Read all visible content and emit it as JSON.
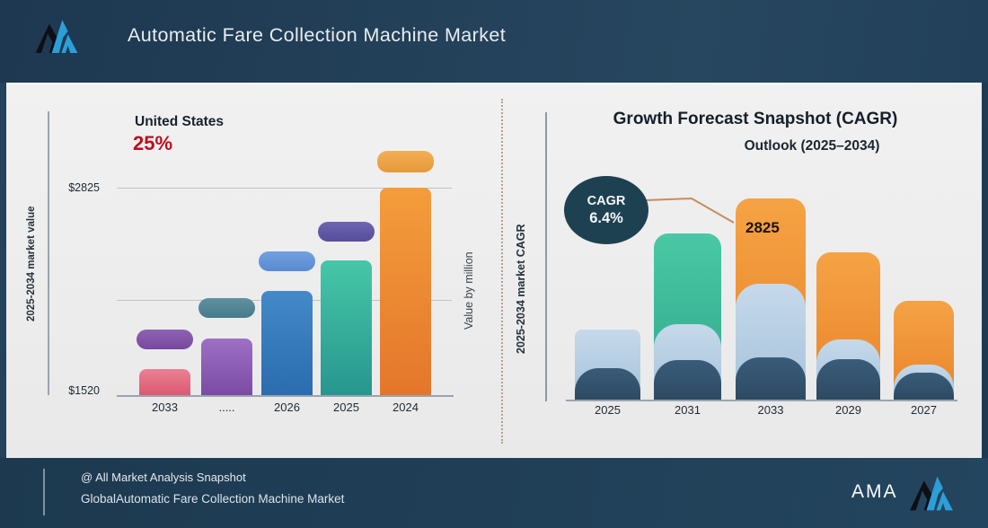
{
  "header": {
    "title": "Automatic Fare Collection Machine Market",
    "logo": "ama-logo"
  },
  "panel": {
    "left_chart": {
      "region_title": "United States",
      "highlight_value": "25%",
      "y_axis_label": "2025-2034 market value",
      "ytick_top": "$2825",
      "ytick_bottom": "$1520",
      "categories": [
        "2033",
        ".....",
        "2026",
        "2025",
        "2024"
      ]
    },
    "center_labels": {
      "value_axis": "Value by million",
      "cagr_axis": "2025-2034 market CAGR"
    },
    "right_chart": {
      "title": "Growth Forecast Snapshot (CAGR)",
      "subtitle": "Outlook (2025–2034)",
      "cagr_badge": {
        "label": "CAGR",
        "value": "6.4%"
      },
      "data_label": "2825",
      "categories": [
        "2025",
        "2031",
        "2033",
        "2029",
        "2027"
      ]
    }
  },
  "footer": {
    "credit": "@ All Market Analysis Snapshot",
    "subtitle": "GlobalAutomatic Fare Collection Machine Market",
    "brand_text": "AMA"
  },
  "colors": {
    "background_navy": "#22415a",
    "panel_bg": "#ededee",
    "accent_red": "#bb0f1c",
    "text_dark": "#1c2733",
    "text_light": "#e9edf0",
    "axis_gray": "#9aa4ad",
    "gridline_gray": "#bfc3c7",
    "divider_tan": "#b2a193",
    "connector_tan": "#c68d5e",
    "circle_navy": "#1e4152",
    "bar_pink": "#e1697f",
    "bar_purple": "#8a5bb4",
    "bar_blue": "#3380c0",
    "bar_teal": "#35b89b",
    "bar_orange": "#ee8a2f",
    "cap_purple": "#7e4da8",
    "cap_slate": "#4b8292",
    "cap_lightblue": "#5f93dd",
    "cap_indigo": "#5b51a5",
    "cap_lightorange": "#f4a33e",
    "seg_navy": "#31506b",
    "seg_lightblue": "#b7cfe4",
    "seg_green": "#3dbd98",
    "seg_orange": "#f29232",
    "logo_black": "#0d0f14",
    "logo_blue": "#2b9fd8"
  },
  "chart_data": [
    {
      "id": "us-market-value",
      "type": "bar",
      "title": "United States",
      "annotation": "25%",
      "ylabel": "2025-2034 market value",
      "yticks": [
        "$1520",
        "$2825"
      ],
      "ylim": [
        1520,
        3100
      ],
      "gridlines": [
        2825
      ],
      "categories": [
        "2033",
        ".....",
        "2026",
        "2025",
        "2024"
      ],
      "values": [
        1685,
        1875,
        2175,
        2365,
        2825
      ],
      "floating_caps": [
        [
          1810,
          1930
        ],
        [
          2005,
          2130
        ],
        [
          2300,
          2425
        ],
        [
          2485,
          2610
        ],
        [
          2920,
          3055
        ]
      ],
      "bar_colors": [
        "pink",
        "purple",
        "blue",
        "teal",
        "orange"
      ],
      "cap_colors": [
        "cappurple",
        "capslate",
        "caplightblue",
        "capindigo",
        "caplightorange"
      ]
    },
    {
      "id": "growth-forecast",
      "type": "stacked-bar",
      "title": "Growth Forecast Snapshot (CAGR)",
      "subtitle": "Outlook (2025–2034)",
      "cagr": "6.4%",
      "categories": [
        "2025",
        "2031",
        "2033",
        "2029",
        "2027"
      ],
      "series": [
        {
          "name": "base",
          "color": "navy",
          "values": [
            440,
            555,
            590,
            565,
            380
          ]
        },
        {
          "name": "mid",
          "color": "lightblue",
          "values": [
            540,
            505,
            1035,
            275,
            115
          ]
        },
        {
          "name": "top",
          "values": [
            0,
            1275,
            1200,
            1225,
            895
          ],
          "colors": [
            "lightblue",
            "green",
            "orange",
            "orange",
            "orange"
          ]
        }
      ],
      "totals": [
        980,
        2335,
        2825,
        2065,
        1390
      ],
      "labeled_point": {
        "category": "2033",
        "value": "2825"
      },
      "ymax": 2825,
      "legend": "none"
    }
  ]
}
